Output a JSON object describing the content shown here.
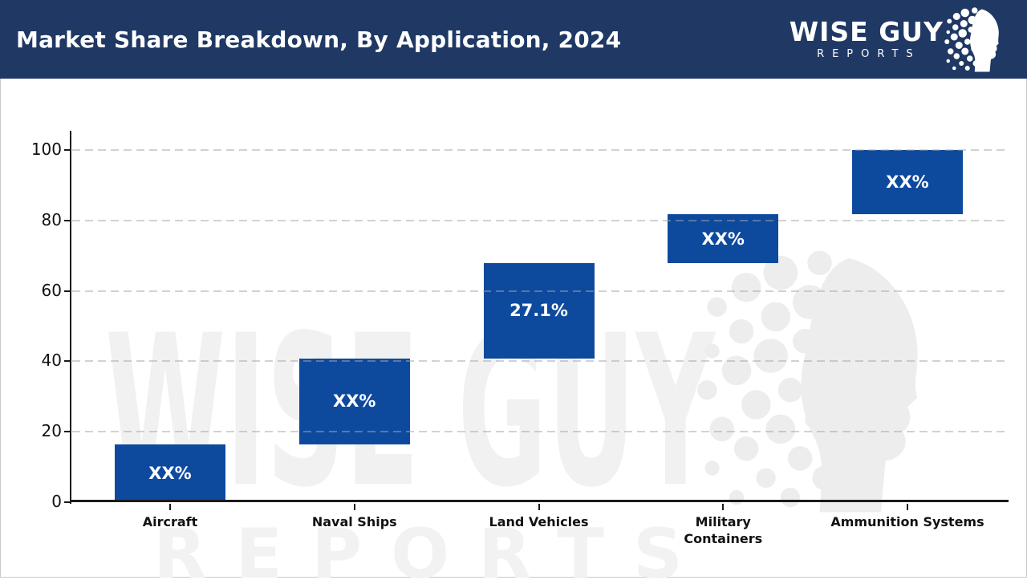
{
  "header": {
    "title": "Market Share Breakdown, By Application, 2024",
    "bg_color": "#1f3864",
    "logo": {
      "name": "WISE GUY",
      "sub": "REPORTS"
    }
  },
  "watermark": {
    "name": "WISE GUY",
    "sub": "REPORTS"
  },
  "chart_data": {
    "type": "bar",
    "subtype": "waterfall",
    "title": "Market Share Breakdown, By Application, 2024",
    "categories": [
      "Aircraft",
      "Naval Ships",
      "Land Vehicles",
      "Military\nContainers",
      "Ammunition Systems"
    ],
    "segments": [
      {
        "category": "Aircraft",
        "start": 0,
        "end": 16.4,
        "span": 16.4,
        "label": "XX%"
      },
      {
        "category": "Naval Ships",
        "start": 16.4,
        "end": 40.8,
        "span": 24.4,
        "label": "XX%"
      },
      {
        "category": "Land Vehicles",
        "start": 40.8,
        "end": 67.9,
        "span": 27.1,
        "label": "27.1%"
      },
      {
        "category": "Military\nContainers",
        "start": 67.9,
        "end": 81.7,
        "span": 13.8,
        "label": "XX%"
      },
      {
        "category": "Ammunition Systems",
        "start": 81.7,
        "end": 100,
        "span": 18.3,
        "label": "XX%"
      }
    ],
    "ylabel": "",
    "xlabel": "",
    "yticks": [
      0,
      20,
      40,
      60,
      80,
      100
    ],
    "ylim": [
      0,
      105
    ],
    "grid": "horizontal-dashed",
    "legend": "none",
    "bar_color": "#0d4a9e",
    "bar_label_color": "#ffffff",
    "axis_color": "#1a1a1a"
  }
}
